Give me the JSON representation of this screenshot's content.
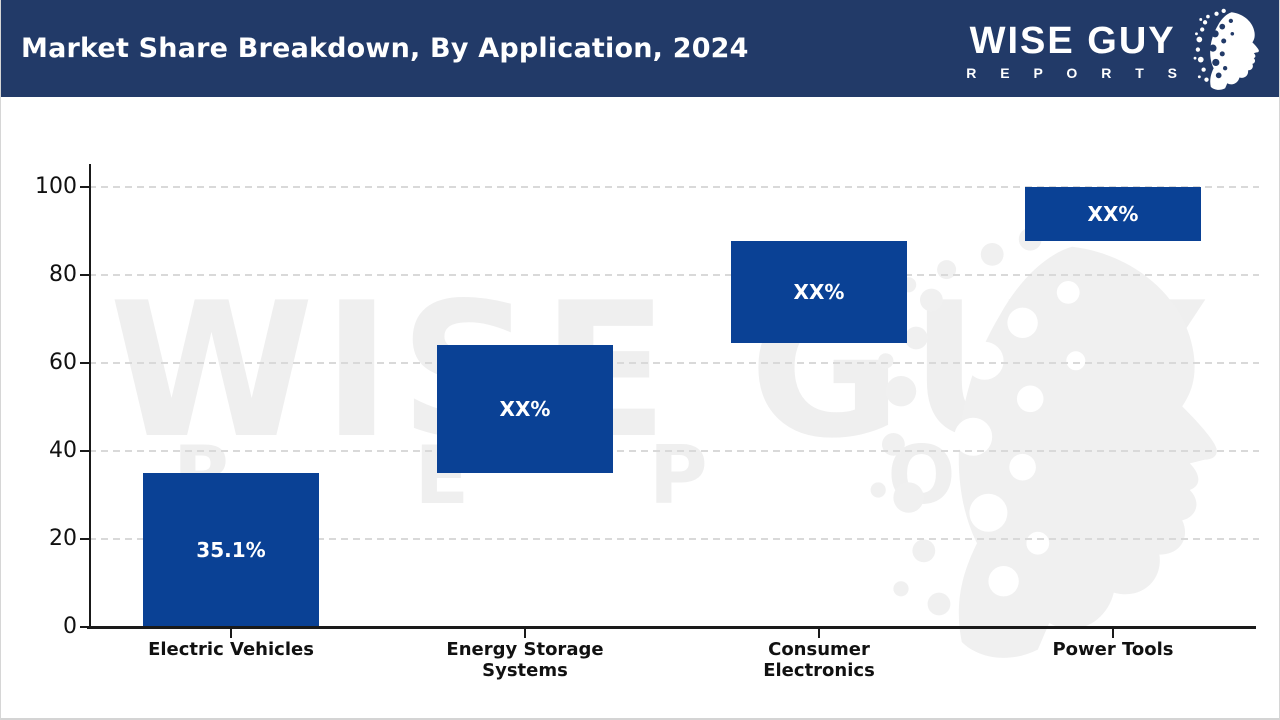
{
  "header": {
    "title": "Market Share Breakdown, By Application, 2024",
    "bg_color": "#223a68",
    "logo": {
      "name": "WISE GUY",
      "sub": "R E P O R T S"
    }
  },
  "watermark": {
    "name": "WISE GUY",
    "sub": "R E P O R T S"
  },
  "chart_data": {
    "type": "bar",
    "variant": "waterfall",
    "title": "Market Share Breakdown, By Application, 2024",
    "xlabel": "",
    "ylabel": "",
    "ylim": [
      0,
      105
    ],
    "yticks": [
      0,
      20,
      40,
      60,
      80,
      100
    ],
    "grid": "horizontal-dashed",
    "legend": "none",
    "bar_color": "#0a4195",
    "value_label_color": "#ffffff",
    "bars": [
      {
        "category": "Electric Vehicles",
        "label_lines": [
          "Electric Vehicles"
        ],
        "start": 0,
        "end": 35.1,
        "value_label": "35.1%"
      },
      {
        "category": "Energy Storage Systems",
        "label_lines": [
          "Energy Storage",
          "Systems"
        ],
        "start": 35.1,
        "end": 64.0,
        "value_label": "XX%"
      },
      {
        "category": "Consumer Electronics",
        "label_lines": [
          "Consumer",
          "Electronics"
        ],
        "start": 64.5,
        "end": 87.8,
        "value_label": "XX%"
      },
      {
        "category": "Power Tools",
        "label_lines": [
          "Power Tools"
        ],
        "start": 87.8,
        "end": 100.0,
        "value_label": "XX%"
      }
    ]
  }
}
